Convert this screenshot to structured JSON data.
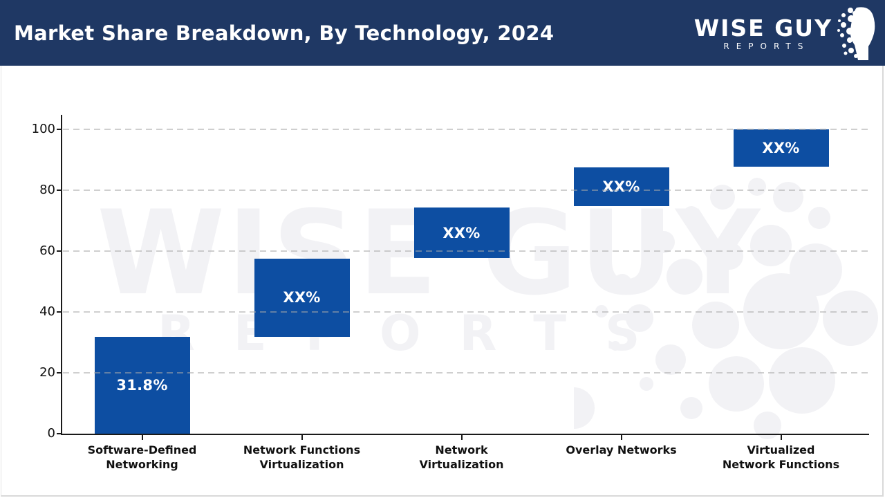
{
  "header": {
    "title": "Market Share Breakdown, By Technology, 2024",
    "bg_color": "#1F3864",
    "logo": {
      "line1": "WISE GUY",
      "line2": "REPORTS"
    }
  },
  "watermark": {
    "line1": "WISE GUY",
    "line2": "REPORTS"
  },
  "chart_data": {
    "type": "bar",
    "subtype": "waterfall",
    "title": "Market Share Breakdown, By Technology, 2024",
    "categories": [
      "Software-Defined Networking",
      "Network Functions Virtualization",
      "Network Virtualization",
      "Overlay Networks",
      "Virtualized Network Functions"
    ],
    "category_lines": [
      [
        "Software-Defined",
        "Networking"
      ],
      [
        "Network Functions",
        "Virtualization"
      ],
      [
        "Network",
        "Virtualization"
      ],
      [
        "Overlay Networks"
      ],
      [
        "Virtualized",
        "Network Functions"
      ]
    ],
    "segments": [
      {
        "label": "31.8%",
        "start": 0,
        "end": 31.8
      },
      {
        "label": "XX%",
        "start": 31.9,
        "end": 57.5
      },
      {
        "label": "XX%",
        "start": 57.7,
        "end": 74.3
      },
      {
        "label": "XX%",
        "start": 74.8,
        "end": 87.5
      },
      {
        "label": "XX%",
        "start": 87.7,
        "end": 100
      }
    ],
    "ylim": [
      0,
      100
    ],
    "yticks": [
      0,
      20,
      40,
      60,
      80,
      100
    ],
    "grid": "dashed horizontal",
    "legend": "none",
    "bar_color": "#0D4EA2",
    "value_label_color": "#FFFFFF",
    "axis_color": "#1a1a1a"
  }
}
